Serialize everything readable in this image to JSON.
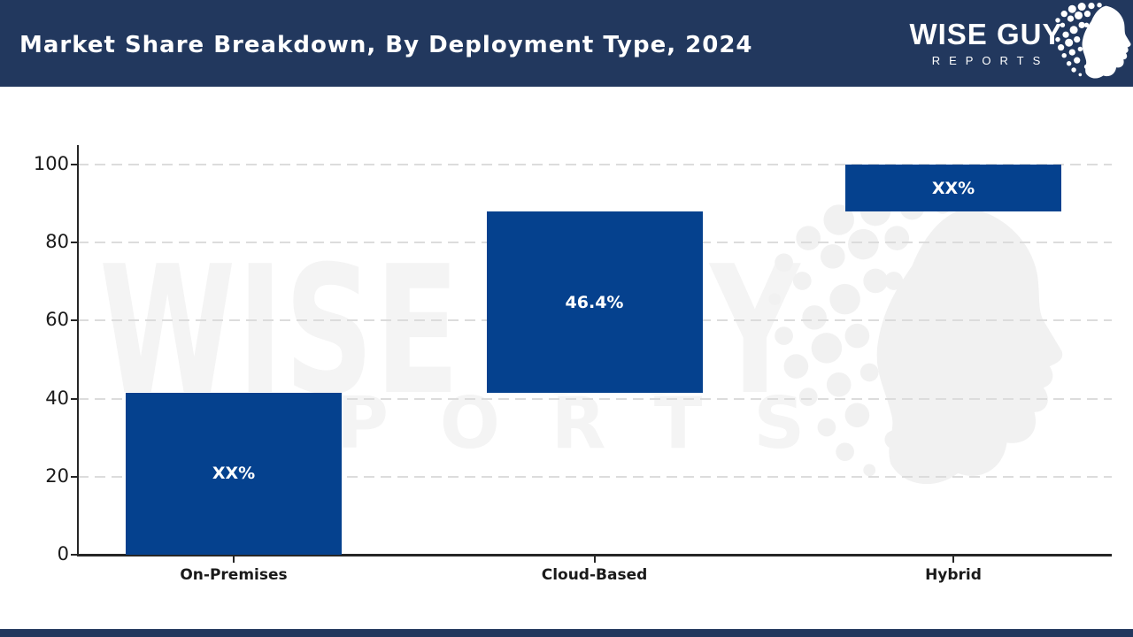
{
  "header": {
    "title": "Market Share Breakdown, By Deployment Type, 2024",
    "logo": {
      "line1": "WISE GUY",
      "line2": "REPORTS"
    }
  },
  "watermark": {
    "line1": "WISE GUY",
    "line2": "REPORTS"
  },
  "colors": {
    "header_bg": "#22385E",
    "footer_bg": "#22385E",
    "bar": "#05418E",
    "bar_label": "#FFFFFF",
    "grid": "#DCDCDC",
    "axis": "#262626",
    "tick_text": "#1A1A1A",
    "title_text": "#FFFFFF",
    "watermark": "#F4F4F4"
  },
  "chart_data": {
    "type": "bar",
    "variant": "waterfall-stacked-percentage",
    "title": "Market Share Breakdown, By Deployment Type, 2024",
    "categories": [
      "On-Premises",
      "Cloud-Based",
      "Hybrid"
    ],
    "segments": [
      {
        "category": "On-Premises",
        "start": 0,
        "end": 41.5,
        "value_label": "XX%"
      },
      {
        "category": "Cloud-Based",
        "start": 41.5,
        "end": 87.9,
        "value_label": "46.4%"
      },
      {
        "category": "Hybrid",
        "start": 87.9,
        "end": 100,
        "value_label": "XX%"
      }
    ],
    "xlabel": "",
    "ylabel": "",
    "ylim": [
      0,
      100
    ],
    "yticks": [
      0,
      20,
      40,
      60,
      80,
      100
    ],
    "grid": "horizontal-dashed",
    "legend": "none"
  }
}
